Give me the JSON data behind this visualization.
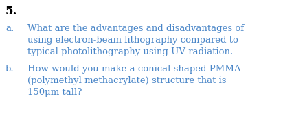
{
  "background_color": "#ffffff",
  "number_label": "5.",
  "number_fontsize": 12,
  "number_fontweight": "bold",
  "number_color": "#000000",
  "label_color": "#4a86c8",
  "text_color": "#4a86c8",
  "items": [
    {
      "label": "a.",
      "text_lines": [
        "What are the advantages and disadvantages of",
        "using electron-beam lithography compared to",
        "typical photolithography using UV radiation."
      ]
    },
    {
      "label": "b.",
      "text_lines": [
        "How would you make a conical shaped PMMA",
        "(polymethyl methacrylate) structure that is",
        "150μm tall?"
      ]
    }
  ],
  "fontsize": 9.5,
  "font_family": "DejaVu Serif",
  "fig_width": 4.28,
  "fig_height": 1.79,
  "dpi": 100
}
